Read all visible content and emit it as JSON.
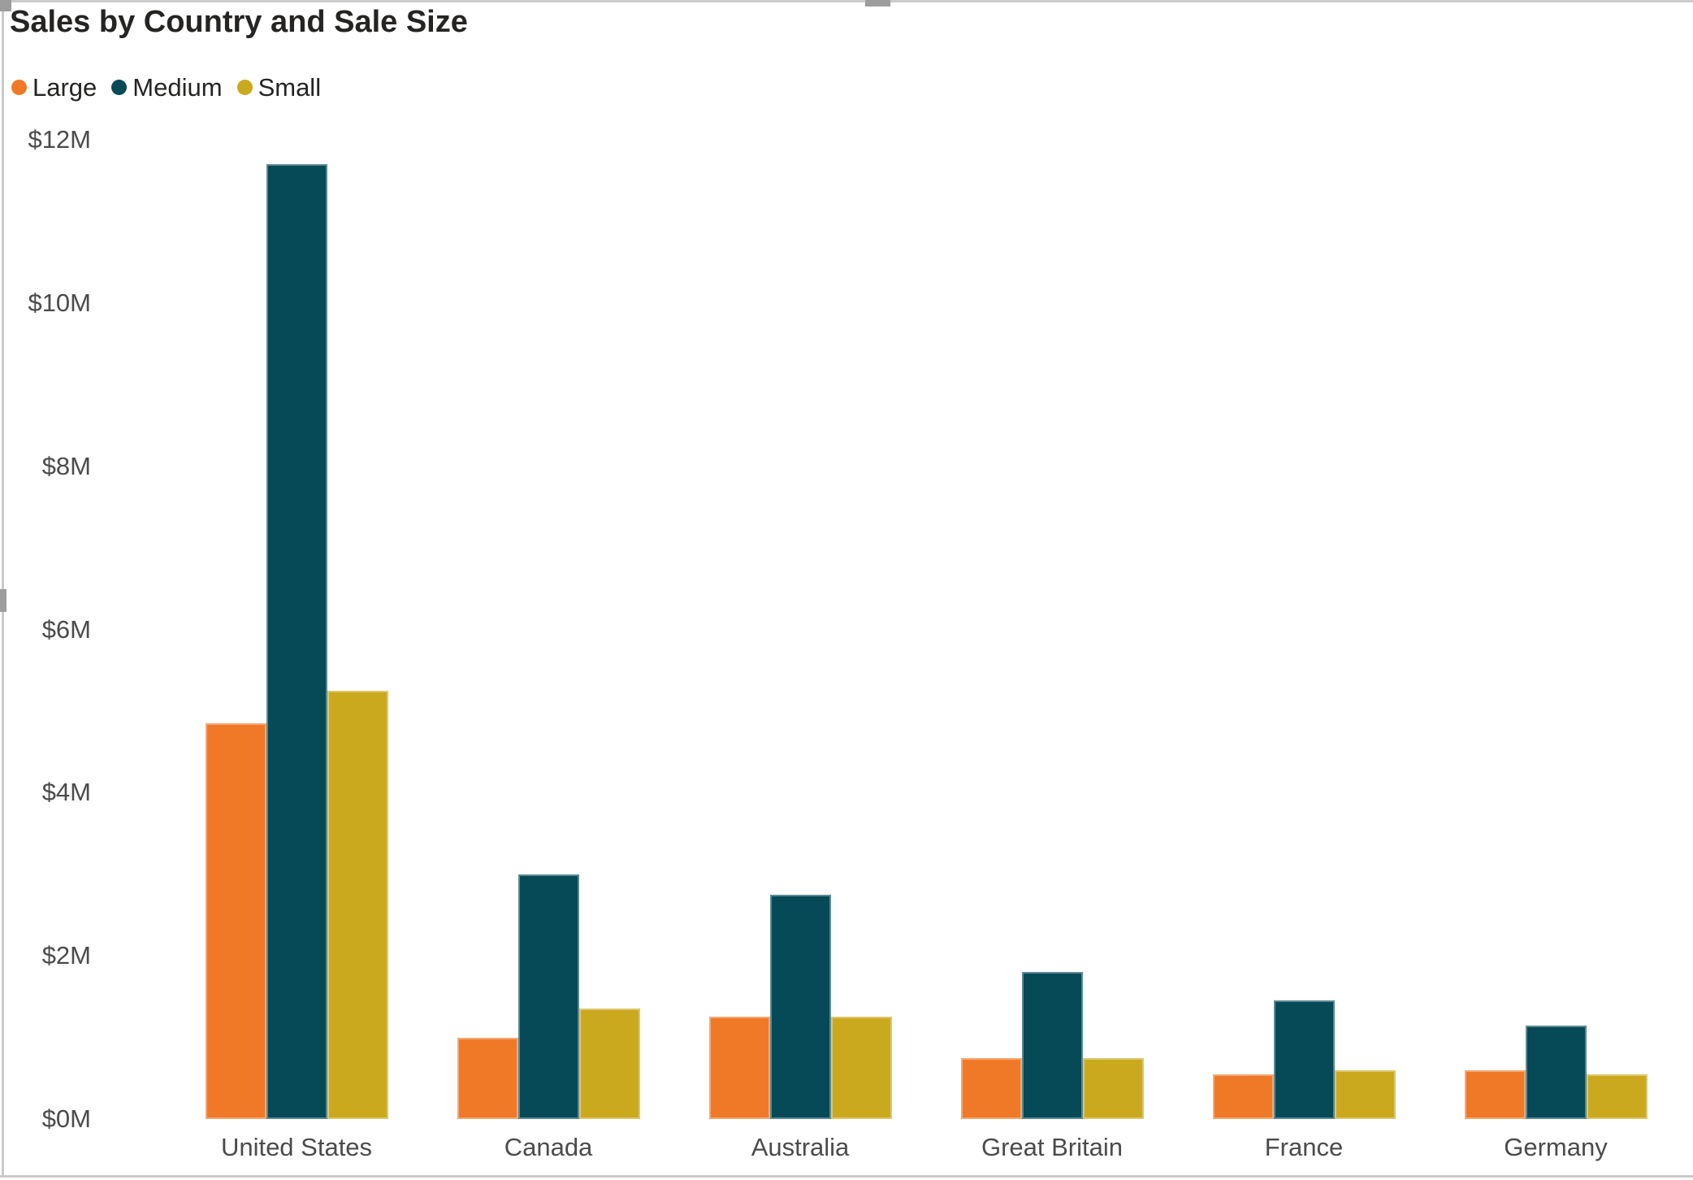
{
  "title": "Sales by Country and Sale Size",
  "visual_header": {
    "filter_icon": "funnel-filter",
    "options_icon": "visual-options (partially cut off at edge)",
    "icon_color": "#75777a"
  },
  "selection_frame": {
    "border_color": "#cbcbcb",
    "handle_color": "#9d9d9d",
    "handles": [
      "top-left-corner",
      "top-center",
      "left-center"
    ]
  },
  "chart_data": {
    "type": "bar",
    "title": "Sales by Country and Sale Size",
    "categories": [
      "United States",
      "Canada",
      "Australia",
      "Great Britain",
      "France",
      "Germany"
    ],
    "series": [
      {
        "name": "Large",
        "color": "#F07928",
        "values": [
          4.85,
          1.0,
          1.25,
          0.75,
          0.55,
          0.6
        ]
      },
      {
        "name": "Medium",
        "color": "#054A56",
        "values": [
          11.7,
          3.0,
          2.75,
          1.8,
          1.45,
          1.15
        ]
      },
      {
        "name": "Small",
        "color": "#CBA91E",
        "values": [
          5.25,
          1.35,
          1.25,
          0.75,
          0.6,
          0.55
        ]
      }
    ],
    "units": "millions USD",
    "ylim": [
      0,
      12
    ],
    "ytick_step": 2,
    "ytick_labels": [
      "$0M",
      "$2M",
      "$4M",
      "$6M",
      "$8M",
      "$10M",
      "$12M"
    ],
    "grid": false,
    "legend_position": "top-left",
    "axis_label_color": "#4b4b4b",
    "title_color": "#252423"
  }
}
